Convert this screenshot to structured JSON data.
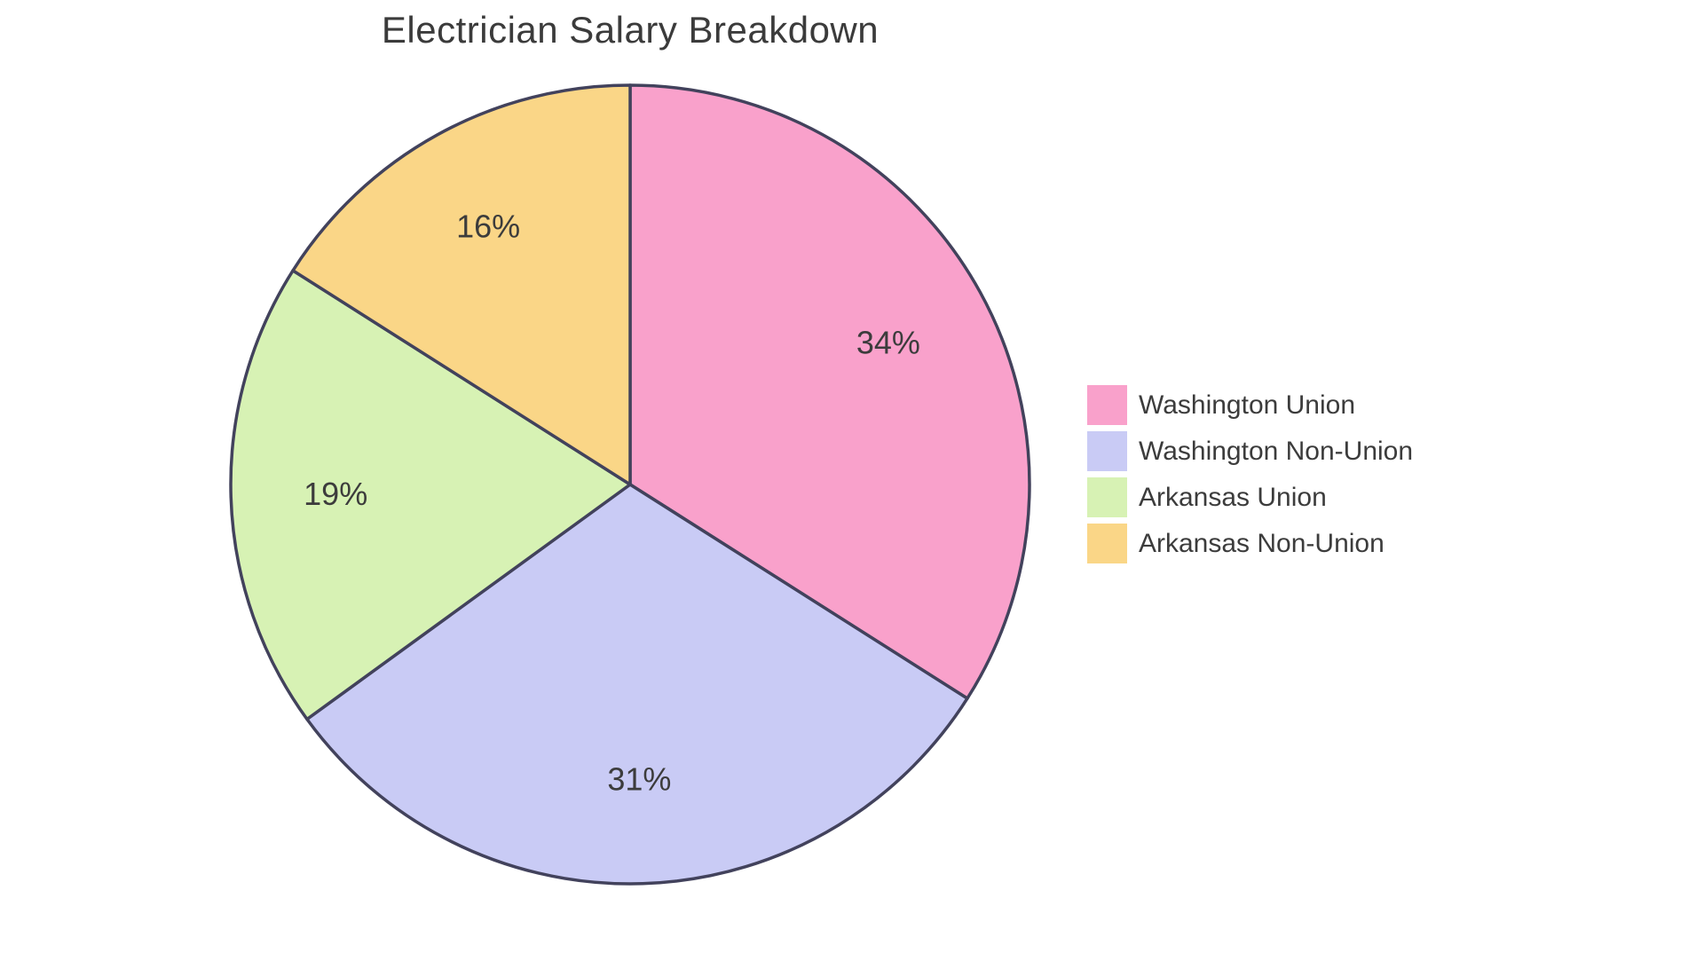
{
  "title": "Electrician Salary Breakdown",
  "chart_data": {
    "type": "pie",
    "title": "Electrician Salary Breakdown",
    "labels": [
      "Washington Union",
      "Washington Non-Union",
      "Arkansas Union",
      "Arkansas Non-Union"
    ],
    "values": [
      34,
      31,
      19,
      16
    ],
    "value_unit": "%",
    "slice_labels": [
      "34%",
      "31%",
      "19%",
      "16%"
    ],
    "colors": [
      "#F9A1CB",
      "#C9CBF5",
      "#D7F2B4",
      "#FAD687"
    ],
    "outline_color": "#42425C",
    "outline_width": 3.5,
    "text_color": "#3C3C3C",
    "start_angle": "12-oclock",
    "direction": "clockwise",
    "legend_position": "right",
    "grid": "off",
    "background": "#FFFFFF"
  }
}
